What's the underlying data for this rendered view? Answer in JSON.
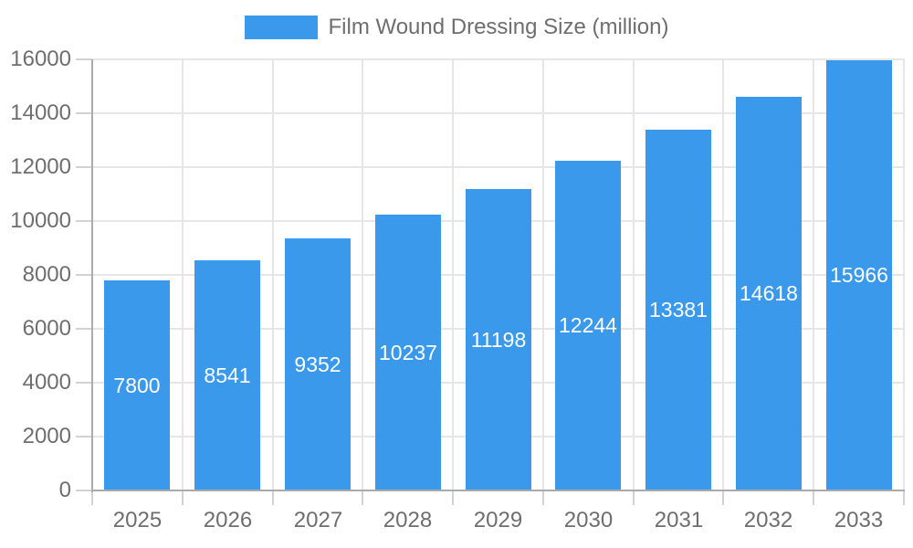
{
  "legend": {
    "label": "Film Wound Dressing Size (million)"
  },
  "colors": {
    "bar": "#3B99EC",
    "bar_label": "#FFFFFF",
    "axis": "#ABABAB",
    "tick": "#D2D2D2",
    "grid": "#E6E6E6",
    "text": "#6E6E6E",
    "background": "#FFFFFF"
  },
  "chart_data": {
    "type": "bar",
    "title": "",
    "categories": [
      "2025",
      "2026",
      "2027",
      "2028",
      "2029",
      "2030",
      "2031",
      "2032",
      "2033"
    ],
    "series": [
      {
        "name": "Film Wound Dressing Size (million)",
        "values": [
          7800,
          8541,
          9352,
          10237,
          11198,
          12244,
          13381,
          14618,
          15966
        ]
      }
    ],
    "xlabel": "",
    "ylabel": "",
    "ylim": [
      0,
      16000
    ],
    "yticks": [
      0,
      2000,
      4000,
      6000,
      8000,
      10000,
      12000,
      14000,
      16000
    ],
    "grid": true,
    "legend_position": "top",
    "bar_labels_visible": true
  }
}
